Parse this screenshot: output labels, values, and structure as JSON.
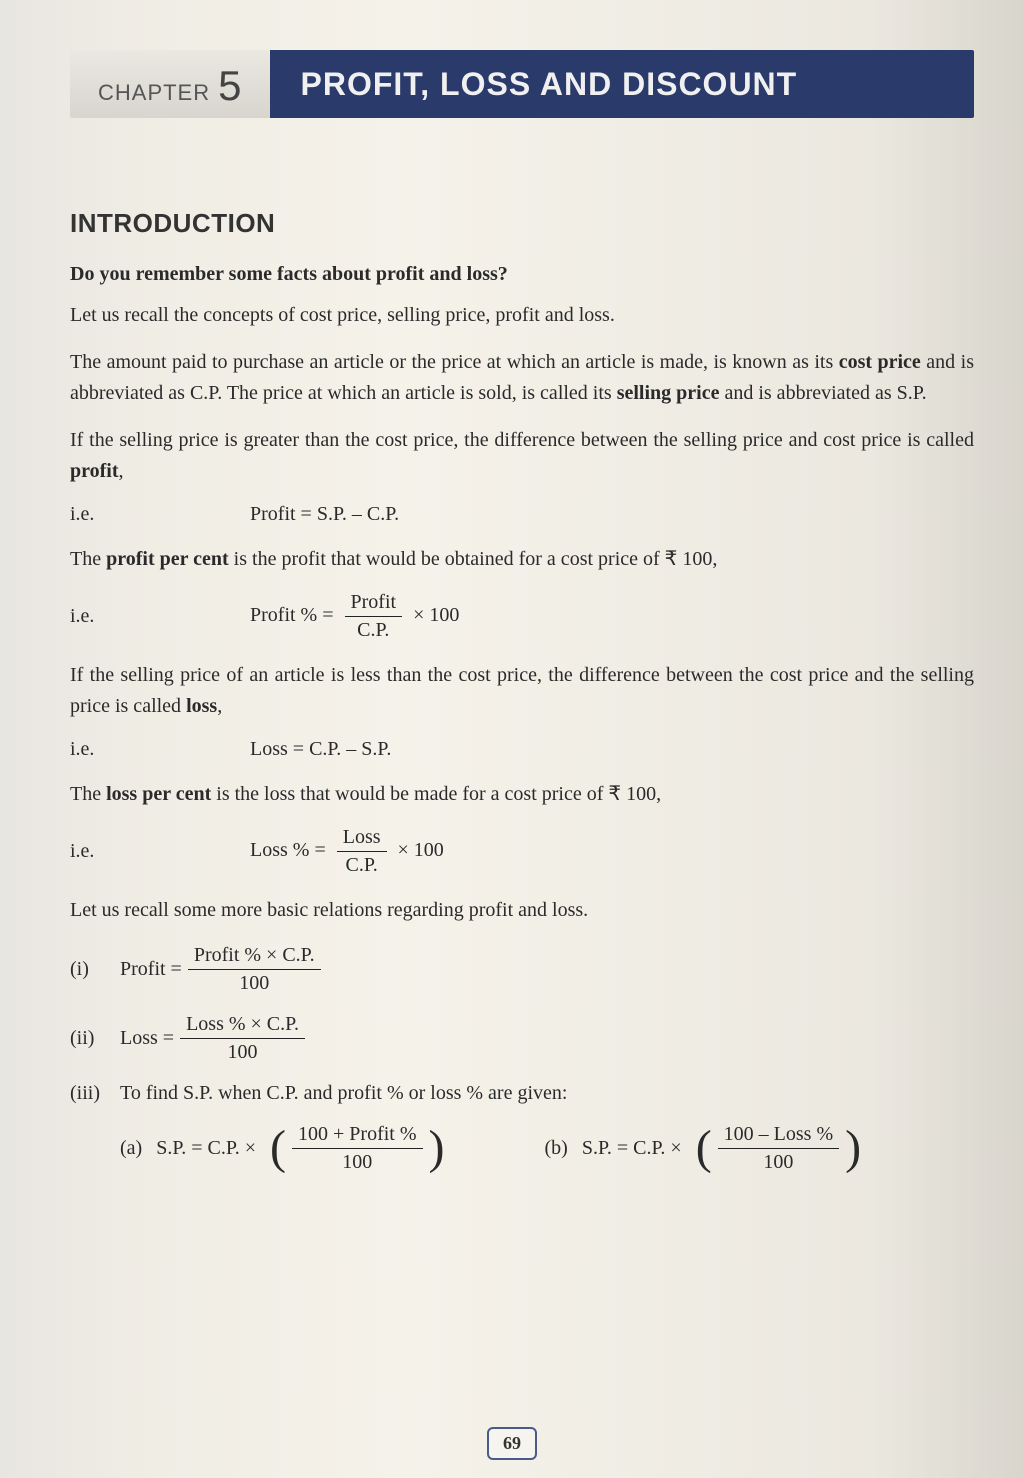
{
  "chapter": {
    "label": "CHAPTER",
    "number": "5",
    "title": "PROFIT, LOSS AND DISCOUNT"
  },
  "intro": {
    "heading": "INTRODUCTION"
  },
  "q": "Do you remember some facts about profit and loss?",
  "p1": "Let us recall the concepts of cost price, selling price, profit and loss.",
  "p2a": "The amount paid to purchase an article or the price at which an article is made, is known as its ",
  "p2b": "cost price",
  "p2c": " and is abbreviated as C.P. The price at which an article is sold, is called its ",
  "p2d": "selling price",
  "p2e": " and is abbreviated as S.P.",
  "p3a": "If the selling price is greater than the cost price, the difference between the selling price and cost price is called ",
  "p3b": "profit",
  "p3c": ",",
  "ie": "i.e.",
  "f1": "Profit   =   S.P. – C.P.",
  "p4a": "The ",
  "p4b": "profit per cent",
  "p4c": " is the profit that would be obtained for a cost price of ₹ 100,",
  "f2": {
    "lhs": "Profit %   =",
    "num": "Profit",
    "den": "C.P.",
    "tail": " × 100"
  },
  "p5a": "If the selling price of an article is less than the cost price, the difference between the cost price and the selling price is called ",
  "p5b": "loss",
  "p5c": ",",
  "f3": "Loss   =   C.P. – S.P.",
  "p6a": "The ",
  "p6b": "loss per cent",
  "p6c": " is the loss that would be made for a cost price of ₹ 100,",
  "f4": {
    "lhs": "Loss %   =",
    "num": "Loss",
    "den": "C.P.",
    "tail": " × 100"
  },
  "p7": "Let us recall some more basic relations regarding profit and loss.",
  "rel": {
    "i": {
      "n": "(i)",
      "lhs": "Profit =",
      "num": "Profit % × C.P.",
      "den": "100"
    },
    "ii": {
      "n": "(ii)",
      "lhs": "Loss =",
      "num": "Loss % × C.P.",
      "den": "100"
    },
    "iii": {
      "n": "(iii)",
      "text": "To find S.P. when C.P. and profit % or loss % are given:"
    },
    "a": {
      "n": "(a)",
      "lhs": "S.P. = C.P. ×",
      "num": "100 + Profit %",
      "den": "100"
    },
    "b": {
      "n": "(b)",
      "lhs": "S.P. = C.P. ×",
      "num": "100 – Loss %",
      "den": "100"
    }
  },
  "pageNumber": "69"
}
